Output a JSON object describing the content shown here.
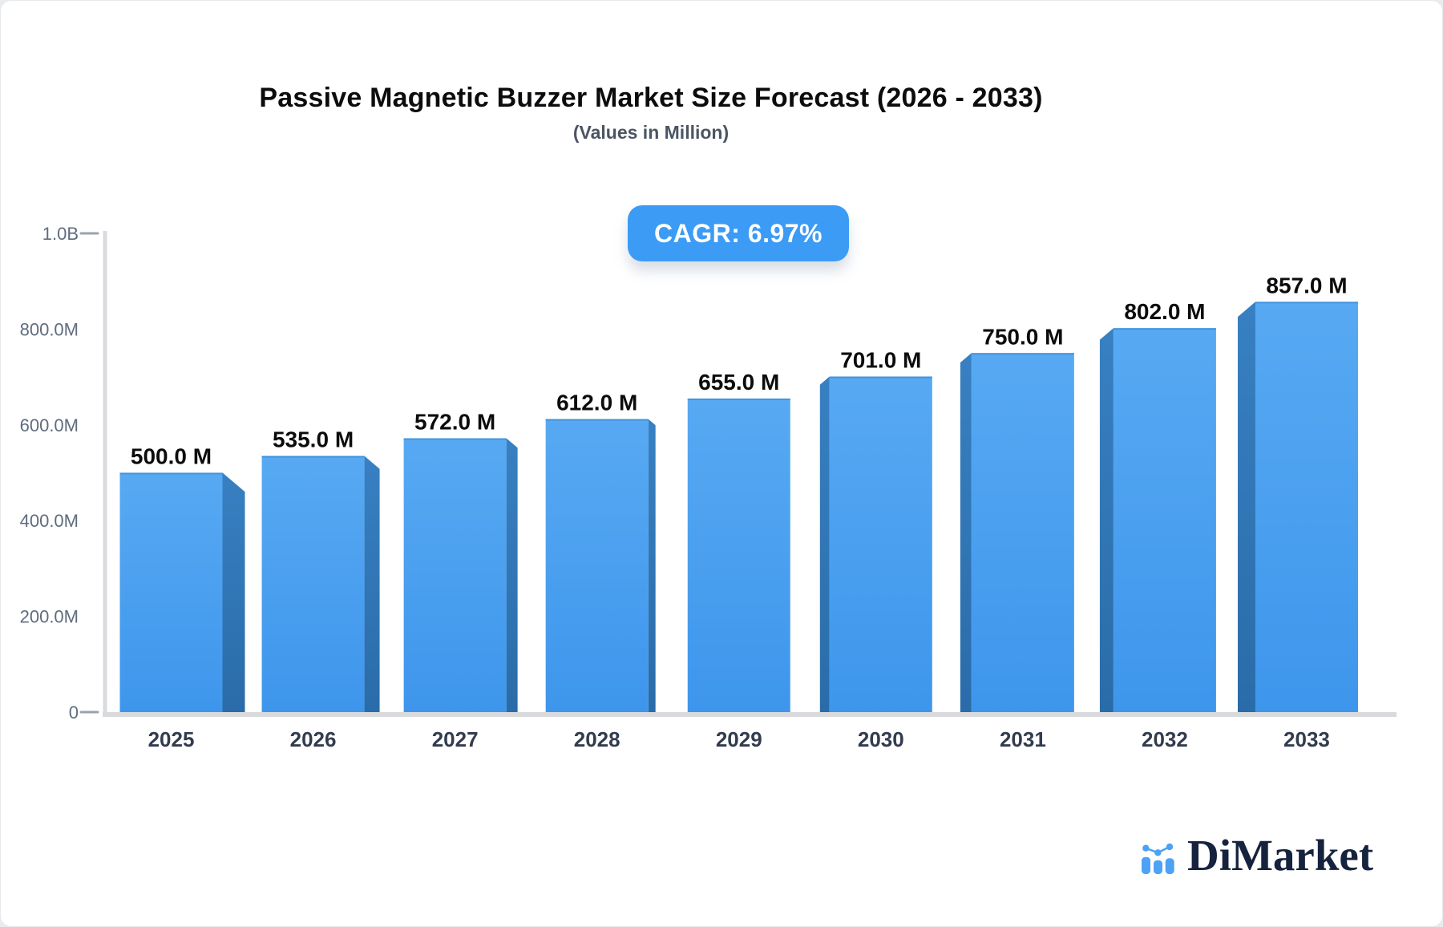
{
  "header": {
    "title": "Passive Magnetic Buzzer Market Size Forecast (2026 - 2033)",
    "subtitle": "(Values in Million)",
    "cagr_label": "CAGR: 6.97%"
  },
  "chart_data": {
    "type": "bar",
    "style": "3d-perspective-columns",
    "title": "Passive Magnetic Buzzer Market Size Forecast (2026 - 2033)",
    "subtitle": "(Values in Million)",
    "unit": "Million",
    "cagr_percent": 6.97,
    "categories": [
      "2025",
      "2026",
      "2027",
      "2028",
      "2029",
      "2030",
      "2031",
      "2032",
      "2033"
    ],
    "values_millions": [
      500,
      535,
      572,
      612,
      655,
      701,
      750,
      802,
      857
    ],
    "bar_labels": [
      "500.0 M",
      "535.0 M",
      "572.0 M",
      "612.0 M",
      "655.0 M",
      "701.0 M",
      "750.0 M",
      "802.0 M",
      "857.0 M"
    ],
    "ylim_millions": [
      0,
      1000
    ],
    "yticks": [
      {
        "value_millions": 0,
        "label": "0",
        "dash": true
      },
      {
        "value_millions": 200,
        "label": "200.0M",
        "dash": false
      },
      {
        "value_millions": 400,
        "label": "400.0M",
        "dash": false
      },
      {
        "value_millions": 600,
        "label": "600.0M",
        "dash": false
      },
      {
        "value_millions": 800,
        "label": "800.0M",
        "dash": false
      },
      {
        "value_millions": 1000,
        "label": "1.0B",
        "dash": true
      }
    ],
    "grid": false,
    "legend": false
  },
  "colors": {
    "bar_front_top": "#57a9f2",
    "bar_front_bottom": "#3e96ec",
    "bar_side_top": "#3880c2",
    "bar_side_bottom": "#2a6ca9",
    "bar_top_edge": "#4295e0",
    "badge_bg": "#3b9bf5",
    "badge_text": "#ffffff",
    "axis_line": "#d8dade",
    "tick_dash": "#9aa3ad",
    "y_label": "#606c7e",
    "x_label": "#323c4e",
    "value_label": "#0c0c0c",
    "title": "#0c0c0e",
    "subtitle": "#4b5563",
    "logo_text": "#16233e",
    "logo_icon": "#4da2f5"
  },
  "logo": {
    "text": "DiMarket",
    "icon": "bar-line-chart-icon"
  }
}
